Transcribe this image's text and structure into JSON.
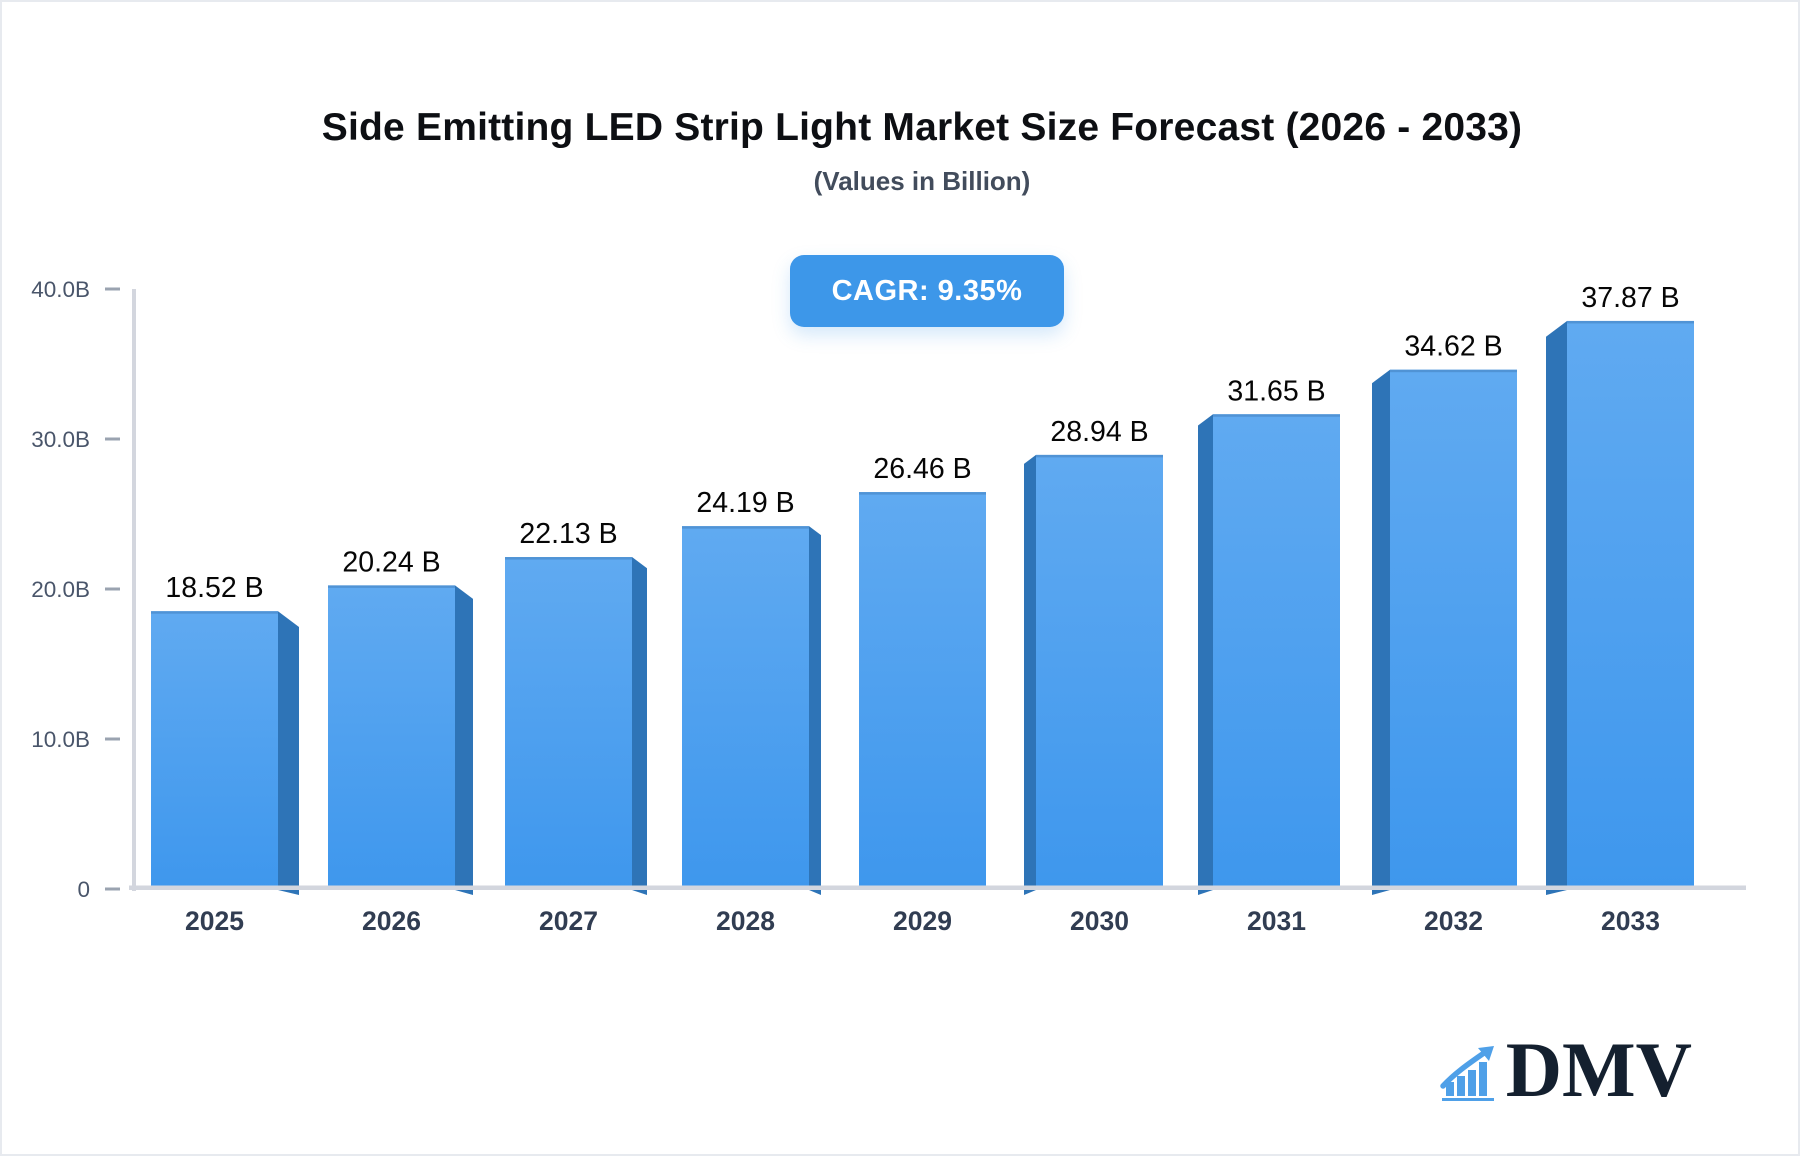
{
  "header": {
    "title": "Side Emitting LED Strip Light Market Size Forecast (2026 - 2033)",
    "subtitle": "(Values in Billion)",
    "cagr_label": "CAGR: 9.35%"
  },
  "chart_data": {
    "type": "bar",
    "title": "Side Emitting LED Strip Light Market Size Forecast (2026 - 2033)",
    "subtitle": "(Values in Billion)",
    "cagr_percent": 9.35,
    "categories": [
      "2025",
      "2026",
      "2027",
      "2028",
      "2029",
      "2030",
      "2031",
      "2032",
      "2033"
    ],
    "values": [
      18.52,
      20.24,
      22.13,
      24.19,
      26.46,
      28.94,
      31.65,
      34.62,
      37.87
    ],
    "value_labels": [
      "18.52 B",
      "20.24 B",
      "22.13 B",
      "24.19 B",
      "26.46 B",
      "28.94 B",
      "31.65 B",
      "34.62 B",
      "37.87 B"
    ],
    "xlabel": "",
    "ylabel": "",
    "y_ticks": [
      0,
      10,
      20,
      30,
      40
    ],
    "y_tick_labels": [
      "0",
      "10.0B",
      "20.0B",
      "30.0B",
      "40.0B"
    ],
    "ylim": [
      0,
      40
    ],
    "grid": false,
    "legend": false,
    "bar_style": "3d-perspective-from-center"
  },
  "branding": {
    "logo_text": "DMV"
  },
  "colors": {
    "bar_gradient_top": "#60AAF1",
    "bar_gradient_bottom": "#3E97ED",
    "bar_side": "#2E74B7",
    "bar_top_edge": "#4E8FD0",
    "axis_line": "#D3D6DE",
    "tick_mark": "#9AA3B0",
    "y_label_text": "#49556A",
    "x_label_text": "#313D52",
    "value_label_text": "#060606",
    "badge_bg": "#3D97E9",
    "title_text": "#0D0F13",
    "subtitle_text": "#424C5C",
    "logo_blue": "#4FA0E8",
    "logo_dark": "#14202F"
  }
}
